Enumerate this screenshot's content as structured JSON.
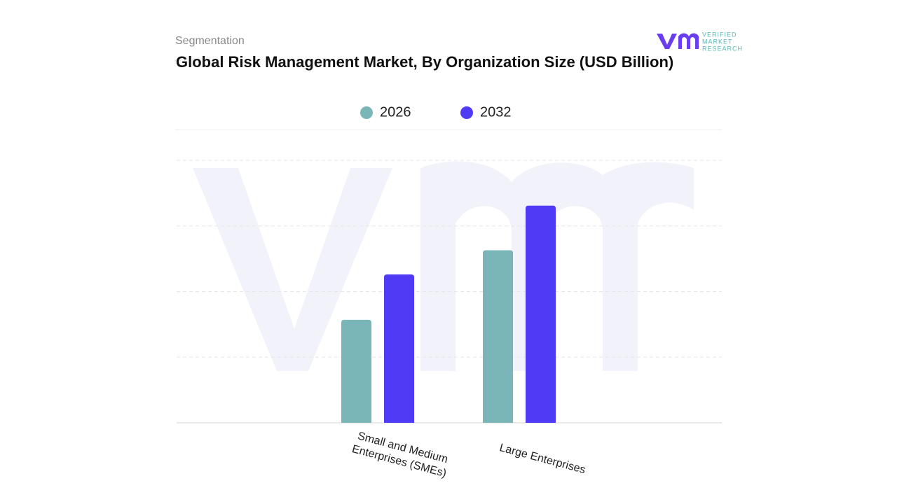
{
  "header": {
    "kicker": "Segmentation",
    "brand": [
      "VERIFIED",
      "MARKET",
      "RESEARCH"
    ]
  },
  "chart_data": {
    "type": "bar",
    "title": "Global Risk Management Market, By Organization Size (USD Billion)",
    "categories": [
      "Small and Medium Enterprises (SMEs)",
      "Large Enterprises"
    ],
    "series": [
      {
        "name": "2026",
        "color": "#7ab5b8",
        "values": [
          1.57,
          2.63
        ]
      },
      {
        "name": "2032",
        "color": "#4f3af5",
        "values": [
          2.26,
          3.31
        ]
      }
    ],
    "ylim": [
      0,
      4.4
    ],
    "yticks": [
      0,
      1,
      2,
      3,
      4
    ],
    "grid": true
  }
}
